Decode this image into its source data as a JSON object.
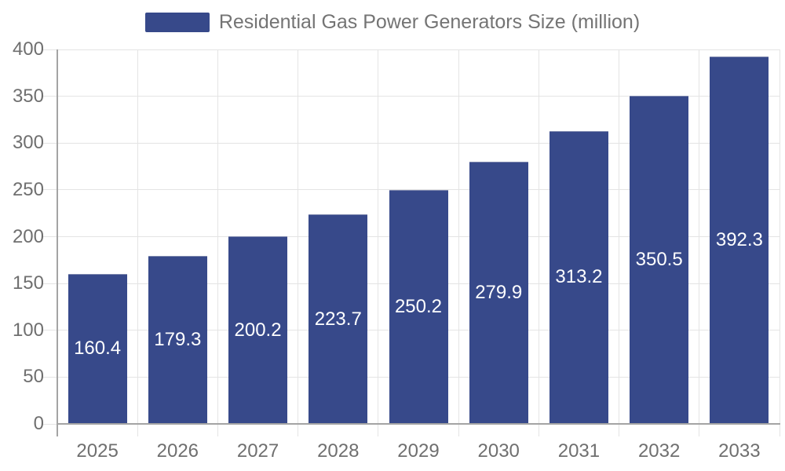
{
  "legend": {
    "label": "Residential Gas Power Generators Size (million)"
  },
  "colors": {
    "bar": "#37498A",
    "bar_border": "#7E88AE",
    "grid": "#E4E4E4",
    "axis": "#A4A4A4",
    "tick_text": "#6F6F6F",
    "legend_text": "#747474",
    "bar_label_text": "#FFFFFF",
    "background": "#FFFFFF"
  },
  "chart_data": {
    "type": "bar",
    "title": "Residential Gas Power Generators Size (million)",
    "series_name": "Residential Gas Power Generators Size (million)",
    "categories": [
      "2025",
      "2026",
      "2027",
      "2028",
      "2029",
      "2030",
      "2031",
      "2032",
      "2033"
    ],
    "values": [
      160.4,
      179.3,
      200.2,
      223.7,
      250.2,
      279.9,
      313.2,
      350.5,
      392.3
    ],
    "xlabel": "",
    "ylabel": "",
    "ylim": [
      0,
      400
    ],
    "yticks": [
      0,
      50,
      100,
      150,
      200,
      250,
      300,
      350,
      400
    ],
    "grid": true,
    "legend_position": "top-center",
    "value_label_position": "inside-center"
  }
}
